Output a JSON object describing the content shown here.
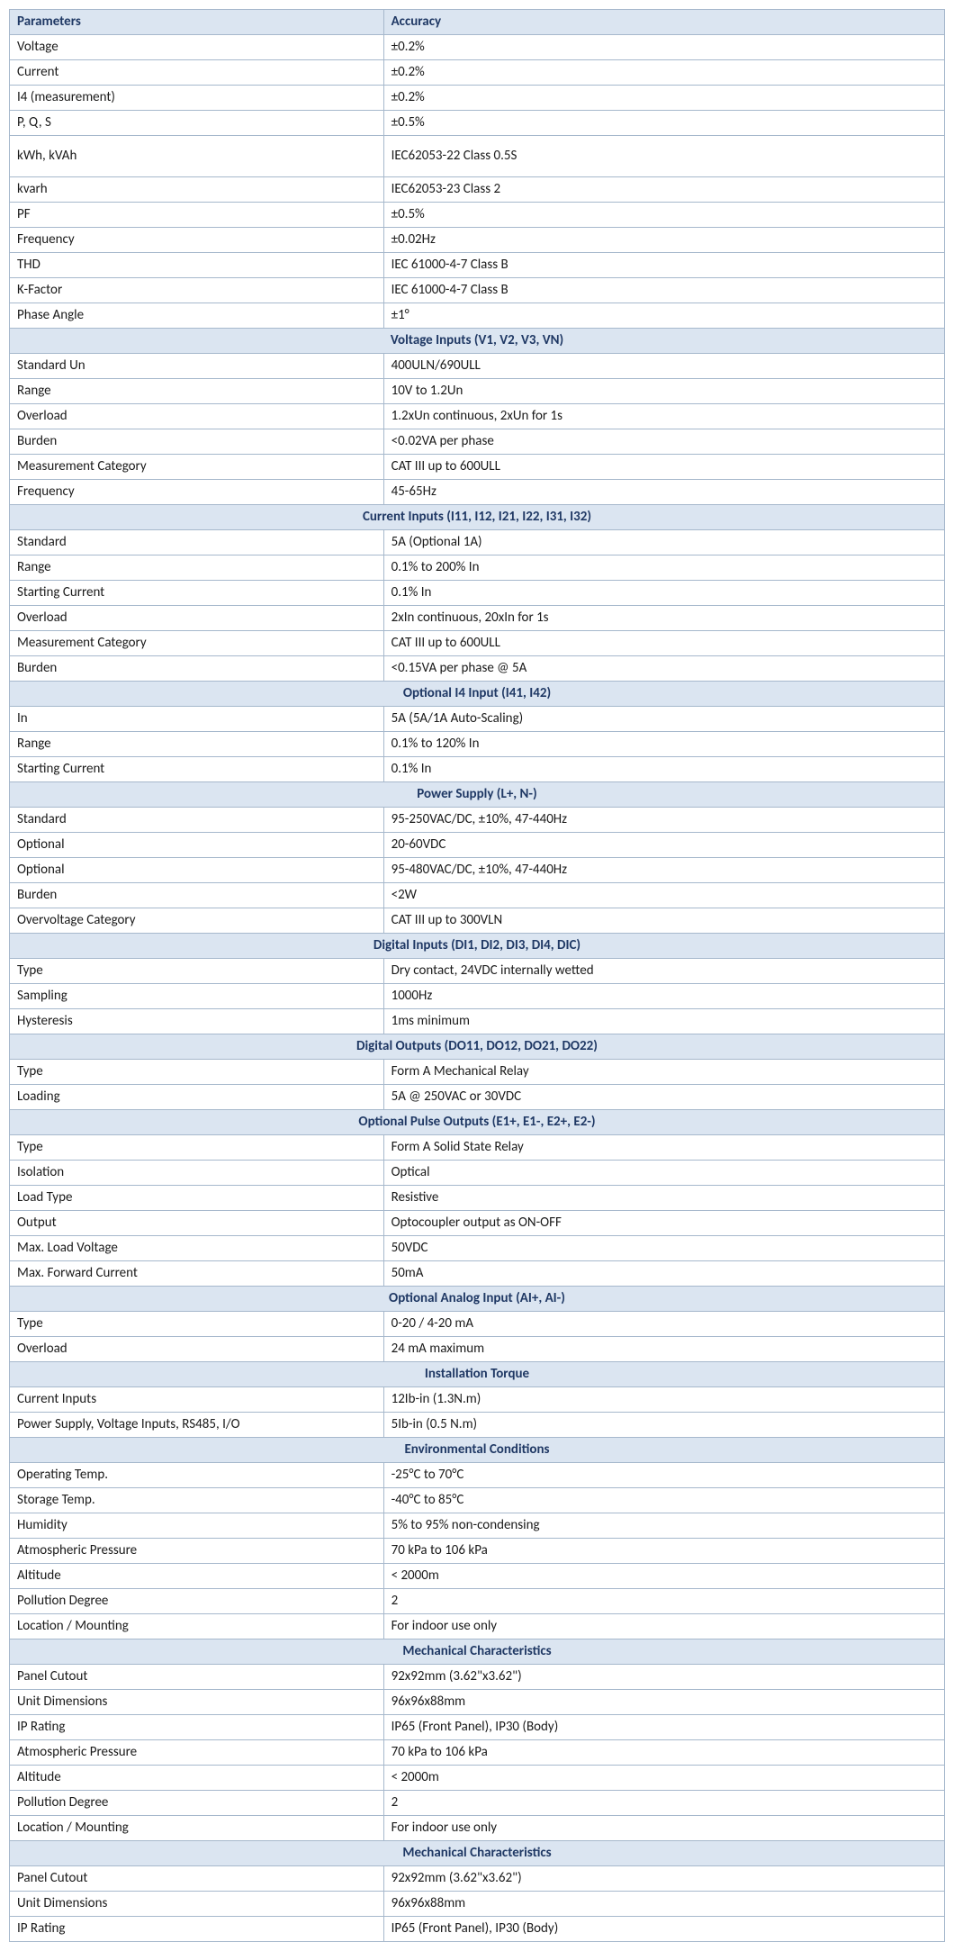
{
  "colors": {
    "header_bg": "#dbe5f1",
    "header_text": "#1f3864",
    "border": "#a6b8cc",
    "text": "#1a1a1a",
    "bg": "#ffffff"
  },
  "typography": {
    "font_family": "Calibri",
    "font_size_pt": 11,
    "header_weight": 700,
    "body_weight": 400
  },
  "layout": {
    "col_widths_pct": [
      40,
      60
    ]
  },
  "table": {
    "headers": [
      "Parameters",
      "Accuracy"
    ],
    "sections": [
      {
        "title": null,
        "rows": [
          {
            "param": "Voltage",
            "value": "±0.2%"
          },
          {
            "param": "Current",
            "value": "±0.2%"
          },
          {
            "param": "I4 (measurement)",
            "value": "±0.2%"
          },
          {
            "param": "P, Q, S",
            "value": "±0.5%"
          },
          {
            "param": "kWh, kVAh",
            "value": "IEC62053-22 Class 0.5S",
            "tall": true
          },
          {
            "param": "kvarh",
            "value": "IEC62053-23 Class 2"
          },
          {
            "param": "PF",
            "value": "±0.5%"
          },
          {
            "param": "Frequency",
            "value": "±0.02Hz"
          },
          {
            "param": "THD",
            "value": "IEC 61000-4-7 Class B"
          },
          {
            "param": "K-Factor",
            "value": "IEC 61000-4-7 Class B"
          },
          {
            "param": "Phase Angle",
            "value": "±1°"
          }
        ]
      },
      {
        "title": "Voltage Inputs (V1, V2, V3, VN)",
        "rows": [
          {
            "param": "Standard Un",
            "value": "400ULN/690ULL"
          },
          {
            "param": "Range",
            "value": "10V to 1.2Un"
          },
          {
            "param": "Overload",
            "value": "1.2xUn continuous, 2xUn for 1s"
          },
          {
            "param": "Burden",
            "value": "<0.02VA per phase"
          },
          {
            "param": "Measurement Category",
            "value": "CAT III up to 600ULL"
          },
          {
            "param": "Frequency",
            "value": "45-65Hz"
          }
        ]
      },
      {
        "title": "Current Inputs (I11, I12, I21, I22, I31, I32)",
        "rows": [
          {
            "param": "Standard",
            "value": "5A (Optional 1A)"
          },
          {
            "param": "Range",
            "value": "0.1% to 200% In"
          },
          {
            "param": "Starting Current",
            "value": "0.1% In"
          },
          {
            "param": "Overload",
            "value": "2xIn continuous, 20xIn for 1s"
          },
          {
            "param": "Measurement Category",
            "value": "CAT III up to 600ULL"
          },
          {
            "param": "Burden",
            "value": "<0.15VA per phase @ 5A"
          }
        ]
      },
      {
        "title": "Optional I4 Input (I41, I42)",
        "rows": [
          {
            "param": "In",
            "value": "5A (5A/1A Auto-Scaling)"
          },
          {
            "param": "Range",
            "value": "0.1% to 120% In"
          },
          {
            "param": "Starting Current",
            "value": "0.1% In"
          }
        ]
      },
      {
        "title": "Power Supply (L+, N-)",
        "rows": [
          {
            "param": "Standard",
            "value": "95-250VAC/DC, ±10%, 47-440Hz"
          },
          {
            "param": "Optional",
            "value": "20-60VDC"
          },
          {
            "param": "Optional",
            "value": "95-480VAC/DC, ±10%, 47-440Hz"
          },
          {
            "param": "Burden",
            "value": "<2W"
          },
          {
            "param": "Overvoltage Category",
            "value": "CAT III up to 300VLN"
          }
        ]
      },
      {
        "title": "Digital Inputs (DI1, DI2, DI3, DI4, DIC)",
        "rows": [
          {
            "param": "Type",
            "value": "Dry contact, 24VDC internally wetted"
          },
          {
            "param": "Sampling",
            "value": "1000Hz"
          },
          {
            "param": "Hysteresis",
            "value": "1ms minimum"
          }
        ]
      },
      {
        "title": "Digital Outputs (DO11, DO12, DO21, DO22)",
        "rows": [
          {
            "param": "Type",
            "value": "Form A Mechanical Relay"
          },
          {
            "param": "Loading",
            "value": "5A @ 250VAC or 30VDC"
          }
        ]
      },
      {
        "title": "Optional Pulse Outputs (E1+, E1-, E2+, E2-)",
        "rows": [
          {
            "param": "Type",
            "value": "Form A Solid State Relay"
          },
          {
            "param": "Isolation",
            "value": "Optical"
          },
          {
            "param": "Load Type",
            "value": "Resistive"
          },
          {
            "param": "Output",
            "value": "Optocoupler output as ON-OFF"
          },
          {
            "param": "Max. Load Voltage",
            "value": "50VDC"
          },
          {
            "param": "Max. Forward Current",
            "value": "50mA"
          }
        ]
      },
      {
        "title": "Optional Analog Input (AI+, AI-)",
        "rows": [
          {
            "param": "Type",
            "value": "0-20 / 4-20 mA"
          },
          {
            "param": "Overload",
            "value": "24 mA maximum"
          }
        ]
      },
      {
        "title": "Installation Torque",
        "rows": [
          {
            "param": "Current Inputs",
            "value": "12Ib-in (1.3N.m)"
          },
          {
            "param": "Power Supply, Voltage Inputs, RS485, I/O",
            "value": "5Ib-in (0.5 N.m)"
          }
        ]
      },
      {
        "title": "Environmental Conditions",
        "rows": [
          {
            "param": "Operating Temp.",
            "value": "-25°C to 70°C"
          },
          {
            "param": "Storage Temp.",
            "value": "-40°C to 85°C"
          },
          {
            "param": "Humidity",
            "value": "5% to 95% non-condensing"
          },
          {
            "param": "Atmospheric Pressure",
            "value": "70 kPa to 106 kPa"
          },
          {
            "param": "Altitude",
            "value": "< 2000m"
          },
          {
            "param": "Pollution Degree",
            "value": "2"
          },
          {
            "param": "Location / Mounting",
            "value": "For indoor use only"
          }
        ]
      },
      {
        "title": "Mechanical Characteristics",
        "rows": [
          {
            "param": "Panel Cutout",
            "value": "92x92mm (3.62\"x3.62\")"
          },
          {
            "param": "Unit Dimensions",
            "value": "96x96x88mm"
          },
          {
            "param": "IP Rating",
            "value": "IP65 (Front Panel), IP30 (Body)"
          },
          {
            "param": "Atmospheric Pressure",
            "value": "70 kPa to 106 kPa"
          },
          {
            "param": "Altitude",
            "value": "< 2000m"
          },
          {
            "param": "Pollution Degree",
            "value": "2"
          },
          {
            "param": "Location / Mounting",
            "value": "For indoor use only"
          }
        ]
      },
      {
        "title": "Mechanical Characteristics",
        "rows": [
          {
            "param": "Panel Cutout",
            "value": "92x92mm (3.62\"x3.62\")"
          },
          {
            "param": "Unit Dimensions",
            "value": "96x96x88mm"
          },
          {
            "param": "IP Rating",
            "value": "IP65 (Front Panel), IP30 (Body)"
          }
        ]
      }
    ]
  }
}
